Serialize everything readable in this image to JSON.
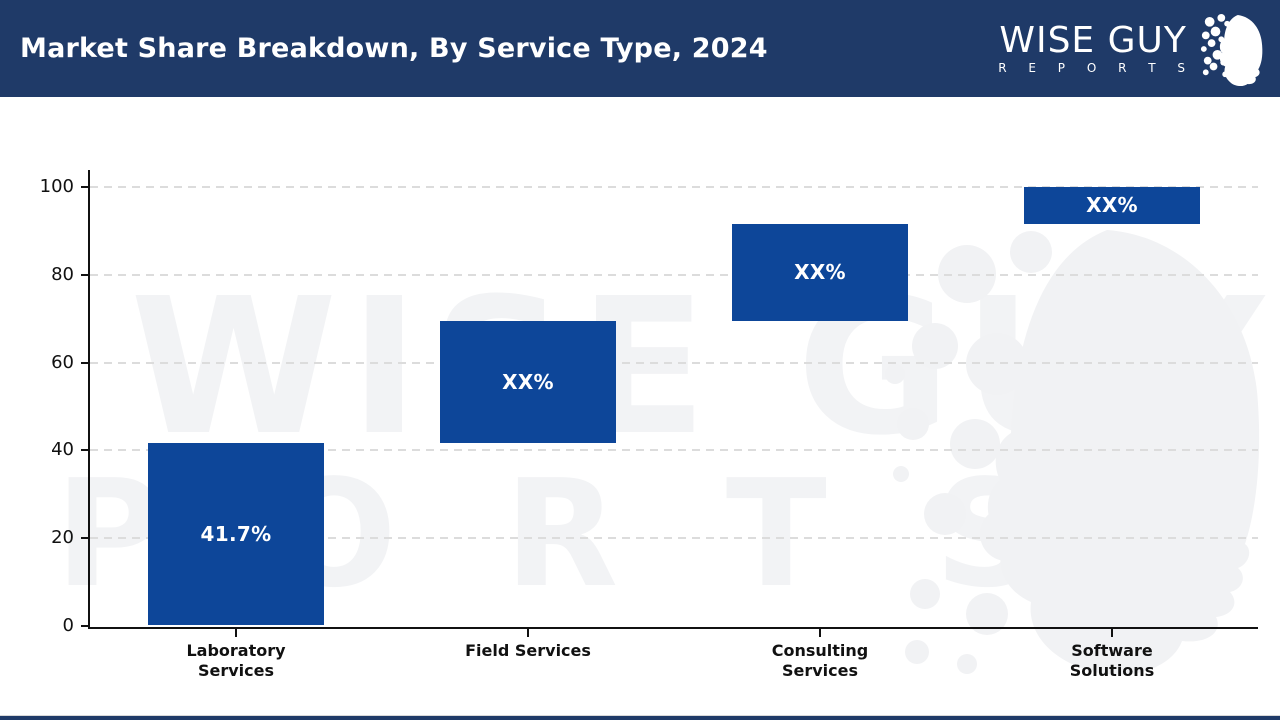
{
  "header": {
    "title": "Market Share Breakdown, By Service Type, 2024",
    "bg_color": "#1f3a68",
    "logo": {
      "line1": "WISE GUY",
      "line2": "R E P O R T S",
      "icon": "dotted-head-profile-icon"
    }
  },
  "watermark": {
    "line1": "WISE GUY",
    "line2": "P O R T S",
    "head_icon": "dotted-head-profile-watermark",
    "color": "#f2f3f5"
  },
  "footer": {
    "bar_color": "#1f3a68"
  },
  "chart_data": {
    "type": "bar",
    "subtype": "waterfall",
    "title": "Market Share Breakdown, By Service Type, 2024",
    "categories": [
      "Laboratory\nServices",
      "Field Services",
      "Consulting\nServices",
      "Software Solutions"
    ],
    "segments": [
      {
        "name": "Laboratory Services",
        "start": 0,
        "end": 41.7,
        "label": "41.7%"
      },
      {
        "name": "Field Services",
        "start": 41.7,
        "end": 69.4,
        "label": "XX%"
      },
      {
        "name": "Consulting Services",
        "start": 69.4,
        "end": 91.7,
        "label": "XX%"
      },
      {
        "name": "Software Solutions",
        "start": 91.7,
        "end": 100,
        "label": "XX%"
      }
    ],
    "yticks": [
      0,
      20,
      40,
      60,
      80,
      100
    ],
    "ylim": [
      0,
      104
    ],
    "xlabel": "",
    "ylabel": "",
    "grid": "horizontal-dashed",
    "legend": "none",
    "bar_color": "#0d4699",
    "bar_label_color": "#ffffff",
    "grid_color": "#dcdcdc",
    "axis_color": "#111111"
  }
}
